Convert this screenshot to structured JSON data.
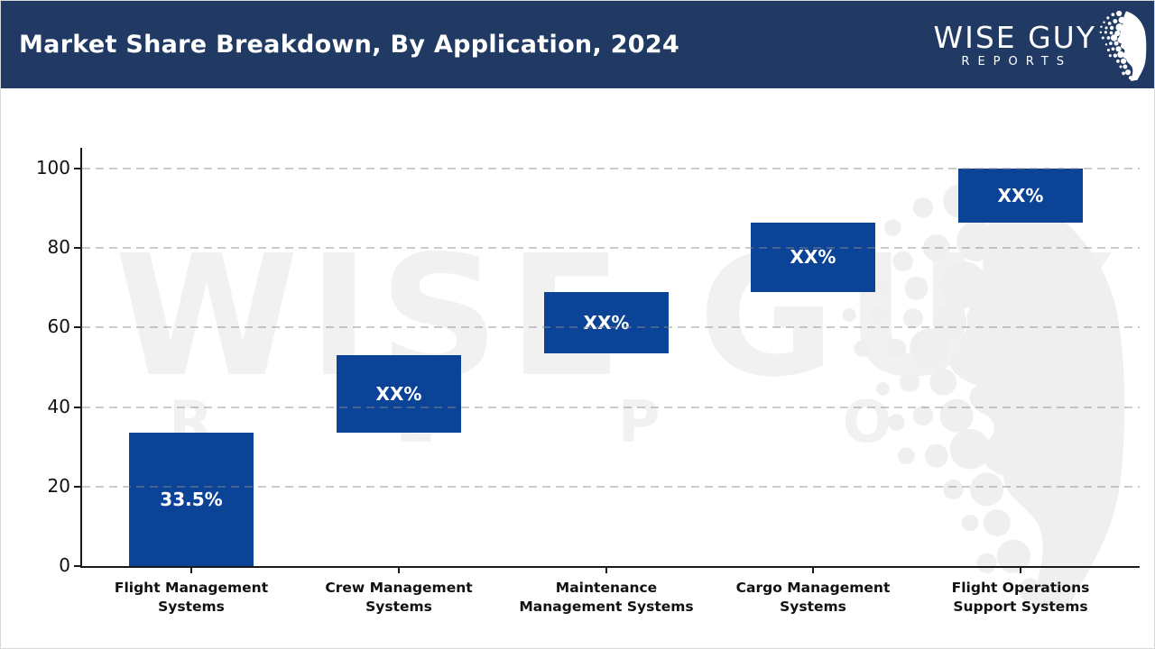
{
  "header": {
    "title": "Market Share Breakdown, By Application, 2024",
    "bg_color": "#203a64",
    "logo": {
      "line1": "WISE GUY",
      "line2": "REPORTS"
    }
  },
  "watermark": {
    "line1": "WISE GUY",
    "line2": "R E P O R T S"
  },
  "chart_data": {
    "type": "bar",
    "subtype": "floating-waterfall",
    "title": "Market Share Breakdown, By Application, 2024",
    "xlabel": "",
    "ylabel": "",
    "ylim": [
      0,
      100
    ],
    "yticks": [
      0,
      20,
      40,
      60,
      80,
      100
    ],
    "grid": true,
    "legend": "none",
    "bar_color": "#0b4397",
    "bar_label_color": "#ffffff",
    "categories": [
      [
        "Flight Management",
        "Systems"
      ],
      [
        "Crew Management",
        "Systems"
      ],
      [
        "Maintenance",
        "Management Systems"
      ],
      [
        "Cargo Management",
        "Systems"
      ],
      [
        "Flight Operations",
        "Support Systems"
      ]
    ],
    "series": [
      {
        "name": "Market Share",
        "segments": [
          {
            "category": "Flight Management Systems",
            "start": 0,
            "end": 33.5,
            "label": "33.5%"
          },
          {
            "category": "Crew Management Systems",
            "start": 33.5,
            "end": 53,
            "label": "XX%"
          },
          {
            "category": "Maintenance Management Systems",
            "start": 53.5,
            "end": 69,
            "label": "XX%"
          },
          {
            "category": "Cargo Management Systems",
            "start": 69,
            "end": 86.5,
            "label": "XX%"
          },
          {
            "category": "Flight Operations Support Systems",
            "start": 86.5,
            "end": 100,
            "label": "XX%"
          }
        ]
      }
    ]
  }
}
